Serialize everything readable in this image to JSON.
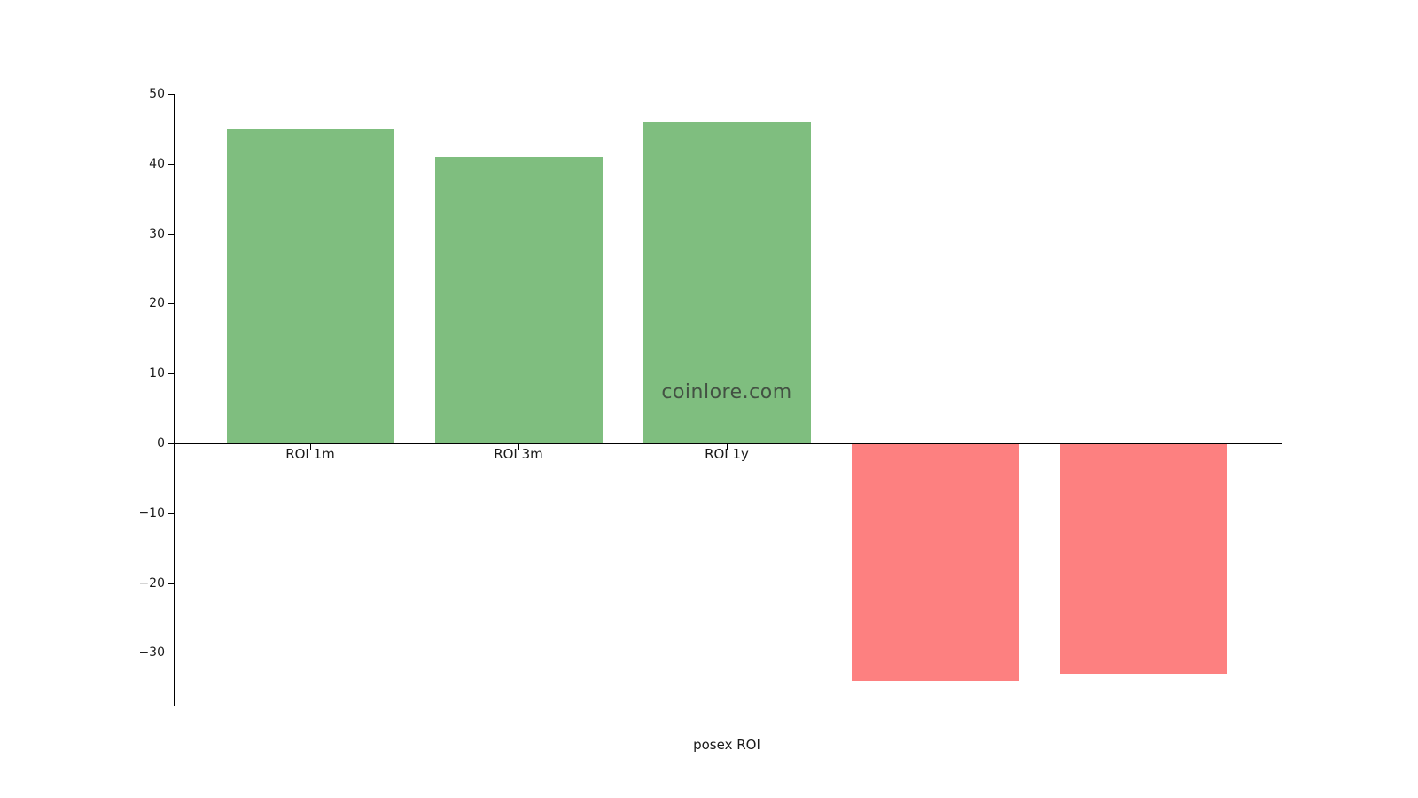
{
  "watermark": {
    "text": "coinlore.com"
  },
  "chart_data": {
    "type": "bar",
    "title": "",
    "xlabel": "posex ROI",
    "ylabel": "",
    "categories": [
      "ROI 1m",
      "ROI 3m",
      "ROI 1y",
      "",
      ""
    ],
    "values": [
      45,
      41,
      46,
      -34,
      -33
    ],
    "series": [
      {
        "name": "posex ROI",
        "values": [
          45,
          41,
          46,
          -34,
          -33
        ]
      }
    ],
    "positive_color": "#7fbe7f",
    "negative_color": "#fd8080",
    "axis_color": "#000000",
    "text_color": "#1a1a1a",
    "yticks": [
      50,
      40,
      30,
      20,
      10,
      0,
      -10,
      -20,
      -30
    ],
    "ytick_labels": [
      "50",
      "40",
      "30",
      "20",
      "10",
      "0",
      "−10",
      "−20",
      "−30"
    ],
    "ylim": [
      -37.5,
      50
    ],
    "grid": false,
    "legend": false
  }
}
